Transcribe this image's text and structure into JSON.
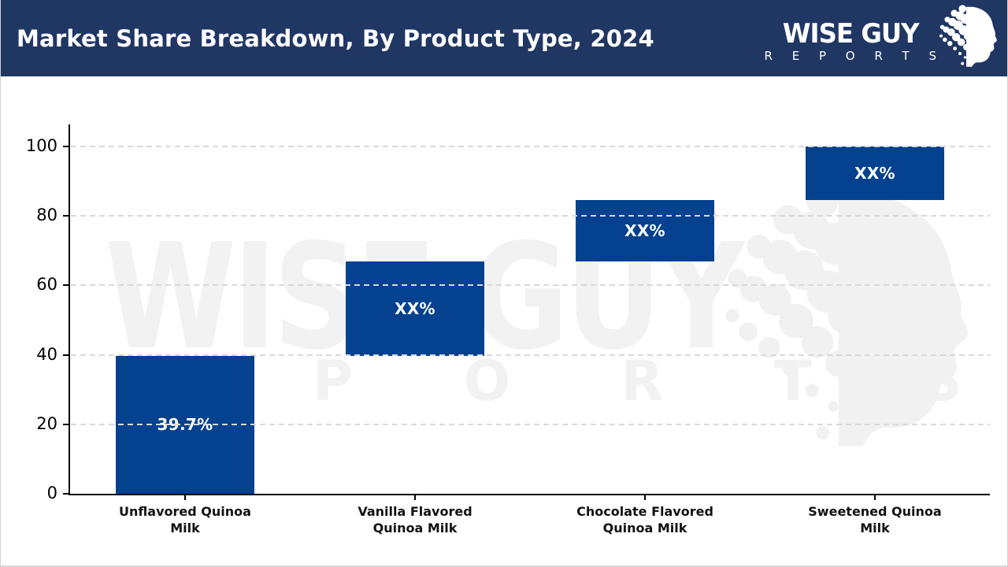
{
  "header": {
    "title": "Market Share Breakdown, By Product Type, 2024",
    "background_color": "#203764",
    "logo": {
      "line1": "WISE GUY",
      "line2": "R E P O R T S"
    }
  },
  "watermark": {
    "line1": "WISE GUY",
    "line2": "P O R T S"
  },
  "chart_data": {
    "type": "bar",
    "subtype": "waterfall",
    "title": "Market Share Breakdown, By Product Type, 2024",
    "categories": [
      "Unflavored Quinoa\nMilk",
      "Vanilla Flavored\nQuinoa Milk",
      "Chocolate Flavored\nQuinoa Milk",
      "Sweetened Quinoa\nMilk"
    ],
    "segments": [
      {
        "category": "Unflavored Quinoa Milk",
        "start": 0,
        "end": 39.7,
        "value": 39.7,
        "label": "39.7%"
      },
      {
        "category": "Vanilla Flavored Quinoa Milk",
        "start": 39.7,
        "end": 67,
        "value": 27.3,
        "label": "XX%"
      },
      {
        "category": "Chocolate Flavored Quinoa Milk",
        "start": 67,
        "end": 84.5,
        "value": 17.5,
        "label": "XX%"
      },
      {
        "category": "Sweetened Quinoa Milk",
        "start": 84.5,
        "end": 100,
        "value": 15.5,
        "label": "XX%"
      }
    ],
    "ylim": [
      0,
      100
    ],
    "yticks": [
      0,
      20,
      40,
      60,
      80,
      100
    ],
    "grid": "horizontal-dashed",
    "legend": "none",
    "bar_color": "#04418f",
    "bar_label_color": "#ffffff",
    "axis_color": "#000000",
    "gridline_color": "#d9d9d9"
  }
}
